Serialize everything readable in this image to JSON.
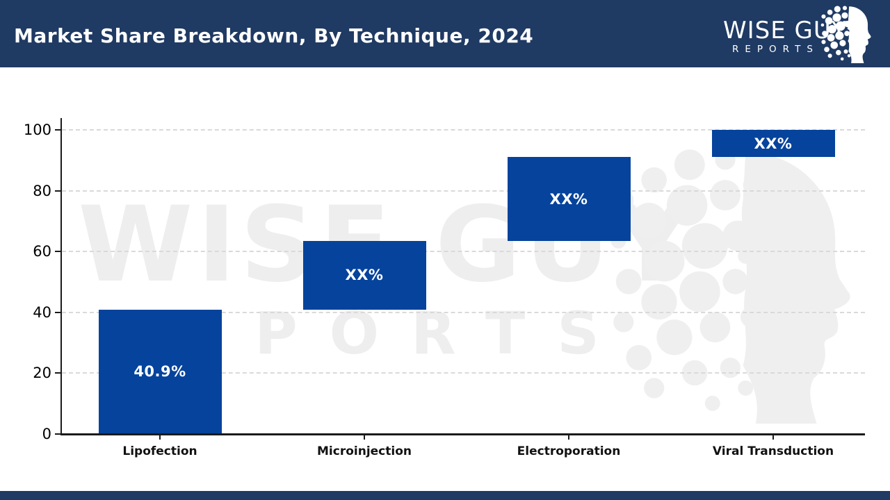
{
  "header": {
    "bg_color": "#1f3a63",
    "title": "Market Share Breakdown, By Technique, 2024",
    "logo": {
      "line1": "WISE GUY",
      "line2": "REPORTS"
    }
  },
  "watermark": {
    "line1": "WISE GUY",
    "line2": "REPORTS"
  },
  "footer": {
    "bg_color": "#1f3a63"
  },
  "chart_data": {
    "type": "bar",
    "subtype": "waterfall",
    "title": "Market Share Breakdown, By Technique, 2024",
    "categories": [
      "Lipofection",
      "Microinjection",
      "Electroporation",
      "Viral Transduction"
    ],
    "segments": [
      {
        "category": "Lipofection",
        "start": 0,
        "end": 40.9,
        "label": "40.9%"
      },
      {
        "category": "Microinjection",
        "start": 40.9,
        "end": 63.5,
        "label": "XX%"
      },
      {
        "category": "Electroporation",
        "start": 63.5,
        "end": 91.0,
        "label": "XX%"
      },
      {
        "category": "Viral Transduction",
        "start": 91.0,
        "end": 100,
        "label": "XX%"
      }
    ],
    "yticks": [
      0,
      20,
      40,
      60,
      80,
      100
    ],
    "ylim": [
      0,
      104
    ],
    "xlabel": "",
    "ylabel": "",
    "grid": "horizontal-dashed",
    "legend": "none",
    "bar_color": "#05439c",
    "bar_label_color": "#ffffff",
    "axis_color": "#1a1a1a",
    "grid_color": "#d9d9d9"
  }
}
